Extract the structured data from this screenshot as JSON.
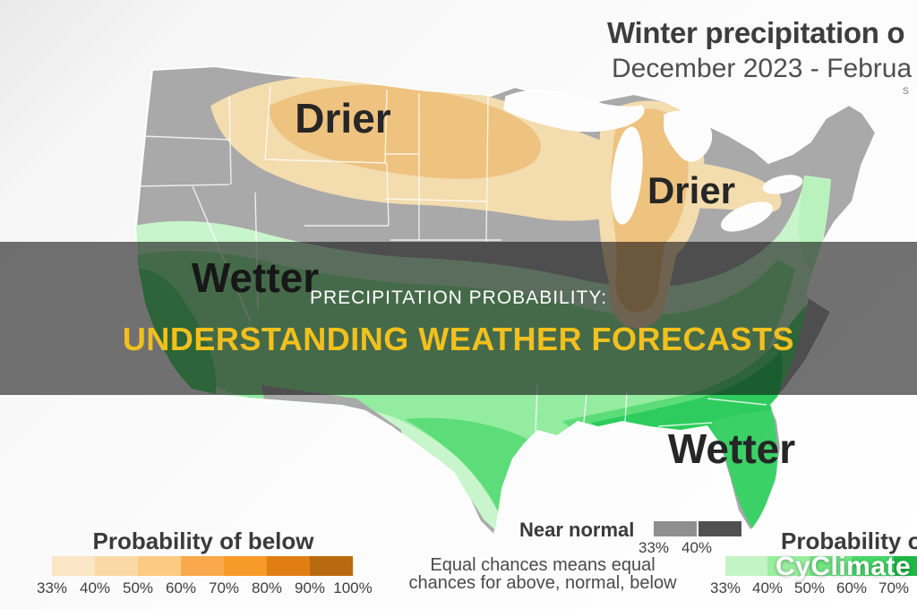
{
  "header": {
    "title": "Winter precipitation o",
    "subtitle": "December 2023 - Februa",
    "source_fragment": "s"
  },
  "map": {
    "labels": [
      {
        "id": "drier-northwest",
        "text": "Drier"
      },
      {
        "id": "drier-greatlakes",
        "text": "Drier"
      },
      {
        "id": "wetter-west",
        "text": "Wetter"
      },
      {
        "id": "wetter-southeast",
        "text": "Wetter"
      }
    ],
    "colors": {
      "state_base": "#a9a9a9",
      "border_lines": "#ffffff",
      "drier_light": "#f3dcae",
      "drier_dark": "#eec27f",
      "wetter_light": "#c9f5cc",
      "wetter_medium": "#93ec9f",
      "wetter_deep": "#5cdd79",
      "wetter_darkest": "#2ecc5e",
      "florida_green": "#3bd167",
      "label_text": "#262626"
    }
  },
  "banner": {
    "line1": "PRECIPITATION PROBABILITY:",
    "line2": "UNDERSTANDING WEATHER FORECASTS",
    "line1_color": "#ffffff",
    "line2_color": "#f2c01d"
  },
  "legends": {
    "below": {
      "title": "Probability of below",
      "labels": [
        "33%",
        "40%",
        "50%",
        "60%",
        "70%",
        "80%",
        "90%",
        "100%"
      ],
      "colors": [
        "#fbe6c6",
        "#fbd9a6",
        "#fcca83",
        "#f9a94c",
        "#f89a28",
        "#e07e14",
        "#b96a10"
      ]
    },
    "near_normal": {
      "title": "Near normal",
      "labels": [
        "33%",
        "40%"
      ],
      "colors": [
        "#8f8f8f",
        "#515151"
      ],
      "note_line1": "Equal chances means equal",
      "note_line2": "chances for above, normal, below"
    },
    "above": {
      "title": "Probability of",
      "labels": [
        "33%",
        "40%",
        "50%",
        "60%",
        "70%"
      ],
      "colors": [
        "#c3f4c6",
        "#9aee9f",
        "#71e584",
        "#47d868",
        "#1db746"
      ]
    }
  },
  "watermark": {
    "text": "CyClimate"
  }
}
